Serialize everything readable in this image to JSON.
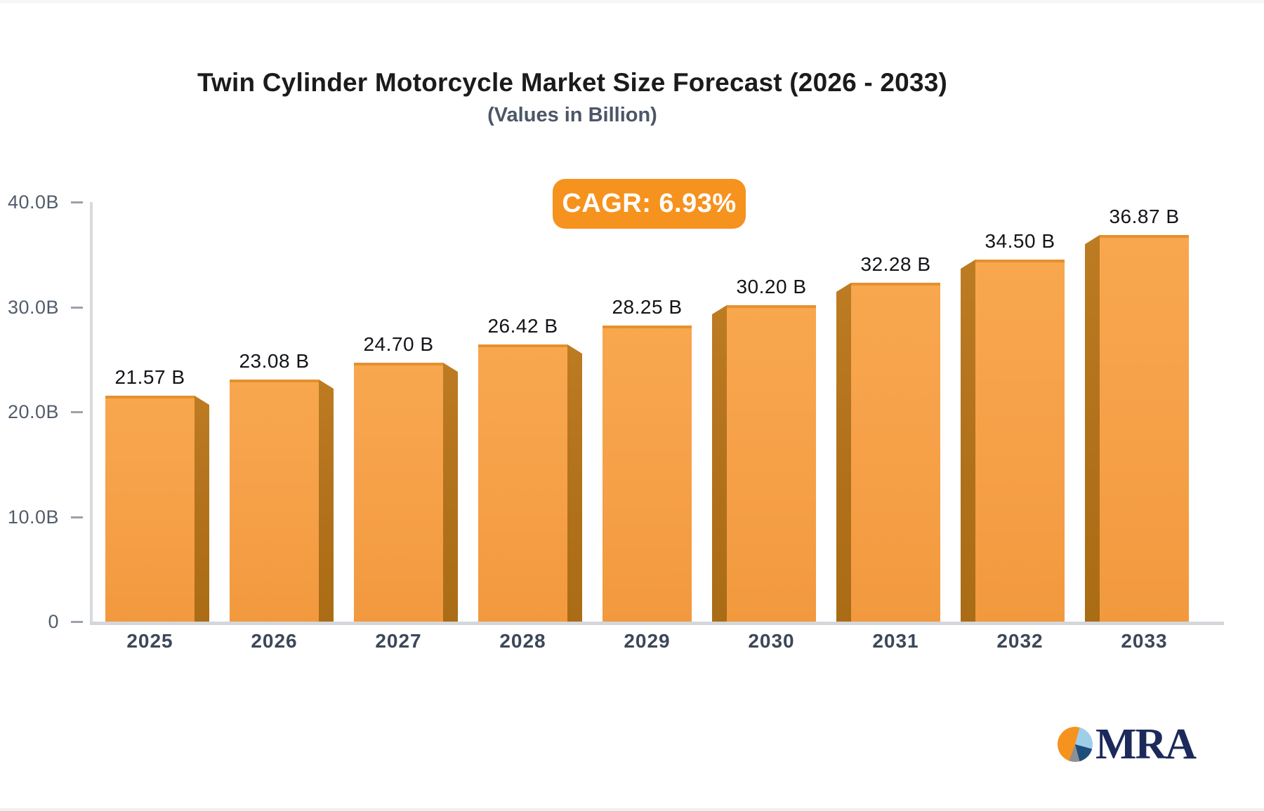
{
  "header": {
    "title": "Twin Cylinder Motorcycle Market Size Forecast (2026 - 2033)",
    "subtitle": "(Values in Billion)"
  },
  "badge": {
    "label": "CAGR: 6.93%",
    "bg": "#F6921E",
    "text_color": "#FFFFFF"
  },
  "chart_data": {
    "type": "bar",
    "title": "Twin Cylinder Motorcycle Market Size Forecast (2026 - 2033)",
    "subtitle": "(Values in Billion)",
    "categories": [
      "2025",
      "2026",
      "2027",
      "2028",
      "2029",
      "2030",
      "2031",
      "2032",
      "2033"
    ],
    "values": [
      21.57,
      23.08,
      24.7,
      26.42,
      28.25,
      30.2,
      32.28,
      34.5,
      36.87
    ],
    "value_labels": [
      "21.57 B",
      "23.08 B",
      "24.70 B",
      "26.42 B",
      "28.25 B",
      "30.20 B",
      "32.28 B",
      "34.50 B",
      "36.87 B"
    ],
    "y_ticks": [
      {
        "label": "40.0B",
        "value": 40
      },
      {
        "label": "30.0B",
        "value": 30
      },
      {
        "label": "20.0B",
        "value": 20
      },
      {
        "label": "10.0B",
        "value": 10
      },
      {
        "label": "0",
        "value": 0
      }
    ],
    "ylim": [
      0,
      40
    ],
    "grid": false,
    "legend": "none",
    "annotation": "CAGR: 6.93%",
    "bar_color": "#F6A149",
    "bar_side_color": "#B4731D",
    "bar_top_edge_color": "#E4912E"
  },
  "colors": {
    "accent_orange": "#F6921E",
    "axis_line": "#D6D9DC",
    "tick": "#9AA2AB",
    "y_label": "#525D6B",
    "x_label": "#3C4759",
    "value_label": "#121418",
    "title": "#1B1B1B",
    "subtitle": "#4C5666",
    "logo_navy": "#1B2A5A"
  },
  "logo": {
    "text": "MRA"
  }
}
